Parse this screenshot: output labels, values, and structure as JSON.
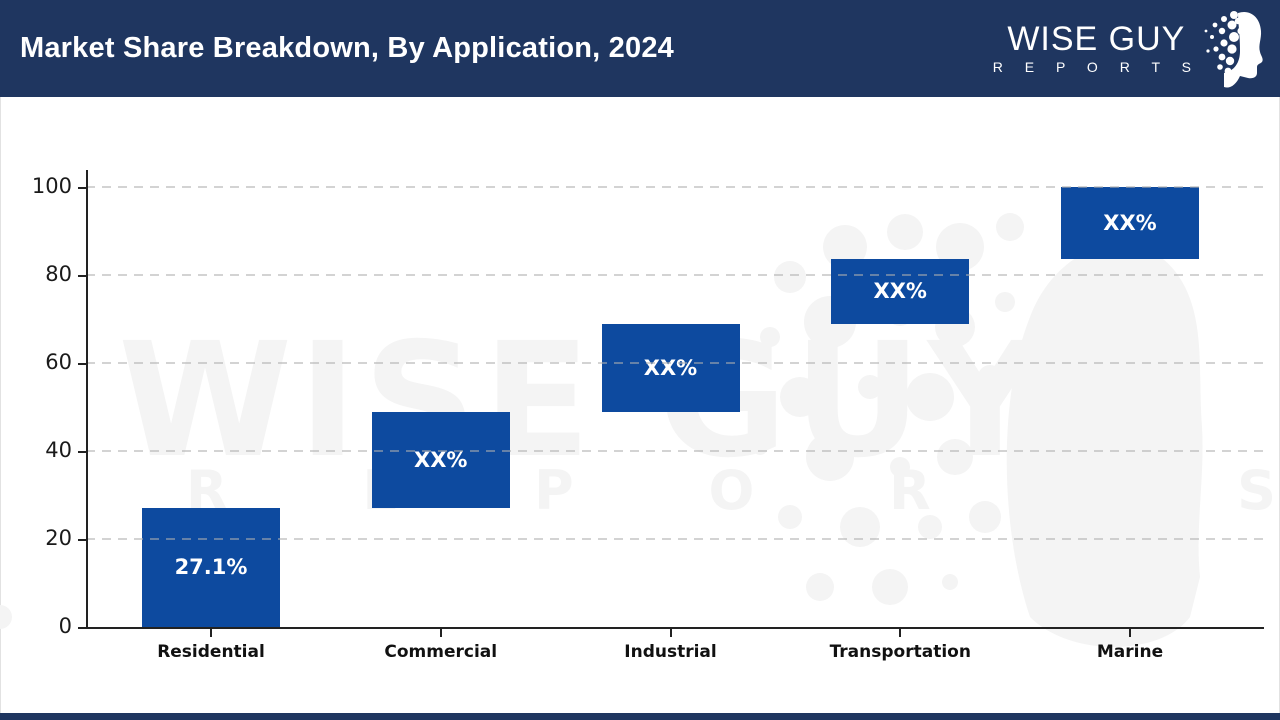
{
  "header": {
    "title": "Market Share Breakdown, By Application, 2024",
    "background_color": "#1f3660",
    "logo": {
      "brand_line1": "WISE GUY",
      "brand_line2": "R E P O R T S",
      "face_icon": "dotted-face-profile"
    }
  },
  "watermark": {
    "line1": "WISE GUY",
    "line2": "R E P O R T S"
  },
  "chart_data": {
    "type": "bar",
    "variant": "waterfall",
    "title": "Market Share Breakdown, By Application, 2024",
    "categories": [
      "Residential",
      "Commercial",
      "Industrial",
      "Transportation",
      "Marine"
    ],
    "segments": [
      {
        "category": "Residential",
        "start": 0,
        "end": 27.1,
        "label": "27.1%"
      },
      {
        "category": "Commercial",
        "start": 27.1,
        "end": 48.9,
        "label": "XX%"
      },
      {
        "category": "Industrial",
        "start": 48.9,
        "end": 68.9,
        "label": "XX%"
      },
      {
        "category": "Transportation",
        "start": 68.9,
        "end": 83.6,
        "label": "XX%"
      },
      {
        "category": "Marine",
        "start": 83.6,
        "end": 100,
        "label": "XX%"
      }
    ],
    "yticks": [
      0,
      20,
      40,
      60,
      80,
      100
    ],
    "ylim": [
      0,
      104
    ],
    "xlabel": "",
    "ylabel": "",
    "grid": "horizontal-dashed",
    "legend": "none",
    "bar_color": "#0d4a9f",
    "bar_label_color": "#ffffff",
    "axis_color": "#222222",
    "grid_color": "#e0e0e0",
    "tick_label_color": "#1a1a1a"
  },
  "footer": {
    "background_color": "#1f3660"
  }
}
